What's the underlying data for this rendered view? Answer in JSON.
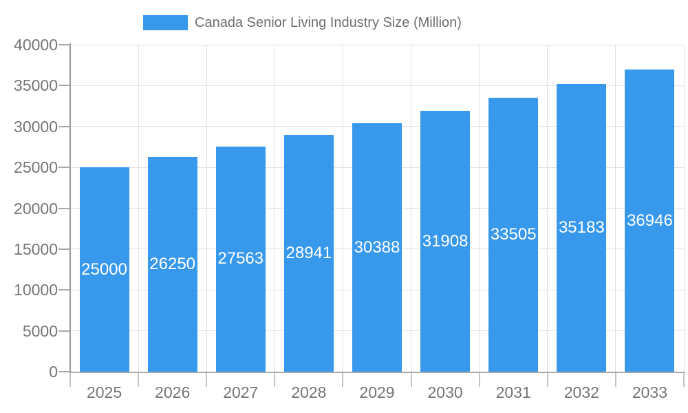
{
  "chart_data": {
    "type": "bar",
    "title": "Canada Senior Living Industry Size (Million)",
    "categories": [
      "2025",
      "2026",
      "2027",
      "2028",
      "2029",
      "2030",
      "2031",
      "2032",
      "2033"
    ],
    "values": [
      25000,
      26250,
      27563,
      28941,
      30388,
      31908,
      33505,
      35183,
      36946
    ],
    "bar_labels": [
      "25000",
      "26250",
      "27563",
      "28941",
      "30388",
      "31908",
      "33505",
      "35183",
      "36946"
    ],
    "xlabel": "",
    "ylabel": "",
    "ylim": [
      0,
      40000
    ],
    "ytick_step": 5000,
    "ytick_labels": [
      "0",
      "5000",
      "10000",
      "15000",
      "20000",
      "25000",
      "30000",
      "35000",
      "40000"
    ],
    "grid": true,
    "legend_position": "top",
    "colors": {
      "bar": "#3899EC",
      "grid": "#e0e0e0",
      "y_axis": "#999999",
      "x_axis": "#a9a9a9",
      "y_tick": "#a8a8a8",
      "x_tick": "#c4c4c4",
      "axis_label_text": "#757575",
      "title_text": "#6e6e6e",
      "bar_label_text": "#ffffff",
      "background": "#ffffff"
    }
  }
}
